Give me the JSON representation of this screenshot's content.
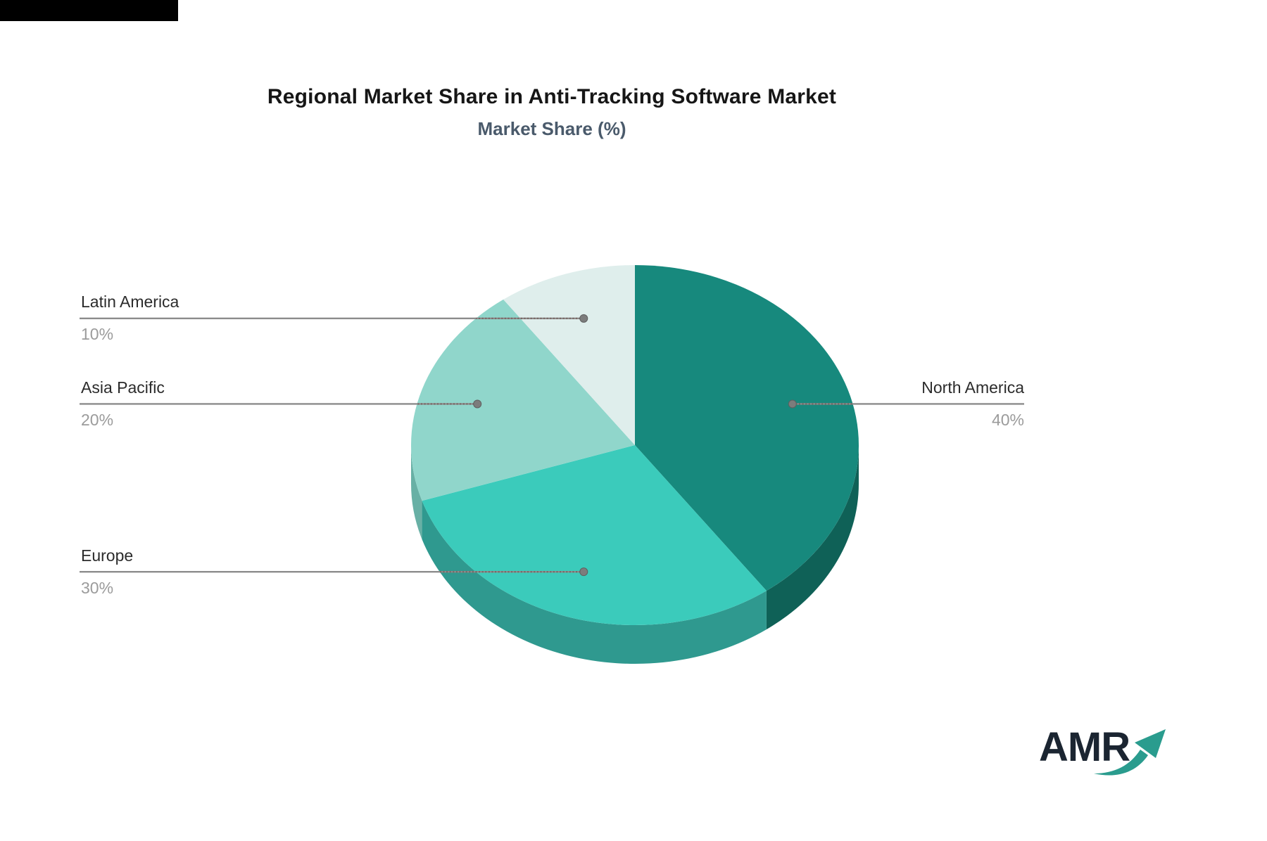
{
  "chart_data": {
    "type": "pie",
    "style": "3d",
    "title": "Regional Market Share in Anti-Tracking Software Market",
    "subtitle": "Market Share (%)",
    "unit": "%",
    "start_angle_deg": 0,
    "direction": "clockwise",
    "legend_position": "none",
    "segments": [
      {
        "label": "North America",
        "value": 40,
        "display": "40%",
        "color": "#17897d",
        "side_color": "#0f6157",
        "label_side": "right"
      },
      {
        "label": "Europe",
        "value": 30,
        "display": "30%",
        "color": "#3bcbbb",
        "side_color": "#2f998f",
        "label_side": "left"
      },
      {
        "label": "Asia Pacific",
        "value": 20,
        "display": "20%",
        "color": "#90d6cb",
        "side_color": "#68b0a5",
        "label_side": "left"
      },
      {
        "label": "Latin America",
        "value": 10,
        "display": "10%",
        "color": "#dfeeec",
        "side_color": "#b9d8d3",
        "label_side": "left"
      }
    ]
  },
  "logo": {
    "text": "AMR",
    "text_color": "#1b2531",
    "arrow_color": "#2a9c8e"
  },
  "colors": {
    "background": "#ffffff",
    "title": "#161616",
    "subtitle": "#4a5a6b",
    "label_text": "#2b2b2b",
    "value_text": "#9b9b9b",
    "leader_line": "#8c8c8c",
    "leader_line_over_pie": "#6d4a44",
    "leader_dot": "#7c7c7c"
  }
}
